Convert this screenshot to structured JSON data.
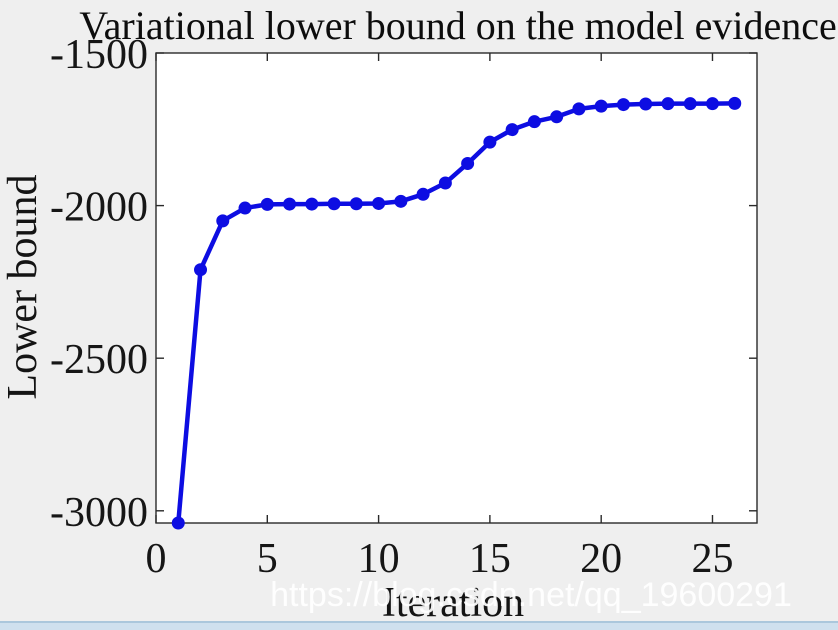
{
  "figure": {
    "title": "Variational lower bound on the model evidence",
    "xlabel": "Iteration",
    "ylabel": "Lower bound",
    "watermark": "https://blog.csdn.net/qq_19600291"
  },
  "chart_data": {
    "type": "line",
    "title": "Variational lower bound on the model evidence",
    "xlabel": "Iteration",
    "ylabel": "Lower bound",
    "x": [
      1,
      2,
      3,
      4,
      5,
      6,
      7,
      8,
      9,
      10,
      11,
      12,
      13,
      14,
      15,
      16,
      17,
      18,
      19,
      20,
      21,
      22,
      23,
      24,
      25,
      26
    ],
    "y": [
      -3040,
      -2210,
      -2050,
      -2008,
      -1996,
      -1995,
      -1995,
      -1994,
      -1994,
      -1993,
      -1986,
      -1963,
      -1926,
      -1862,
      -1792,
      -1751,
      -1725,
      -1709,
      -1683,
      -1674,
      -1669,
      -1667,
      -1666,
      -1666,
      -1666,
      -1665
    ],
    "xlim": [
      0,
      27
    ],
    "ylim": [
      -3040,
      -1500
    ],
    "x_ticks": [
      0,
      5,
      10,
      15,
      20,
      25
    ],
    "y_ticks": [
      -1500,
      -2000,
      -2500,
      -3000
    ],
    "grid": false,
    "legend": null,
    "marker": "filled-circle",
    "line_color": "#0d0de2"
  },
  "style": {
    "figure_background": "#efefef",
    "plot_background": "#ffffff",
    "axis_color": "#2a2a2a",
    "tick_label_color": "#161616",
    "line_color": "#0d0de2",
    "watermark_color": "rgba(255,255,255,0.92)",
    "bottom_bar_fill": "#cfe0ee",
    "bottom_bar_border": "#abc7dc"
  }
}
